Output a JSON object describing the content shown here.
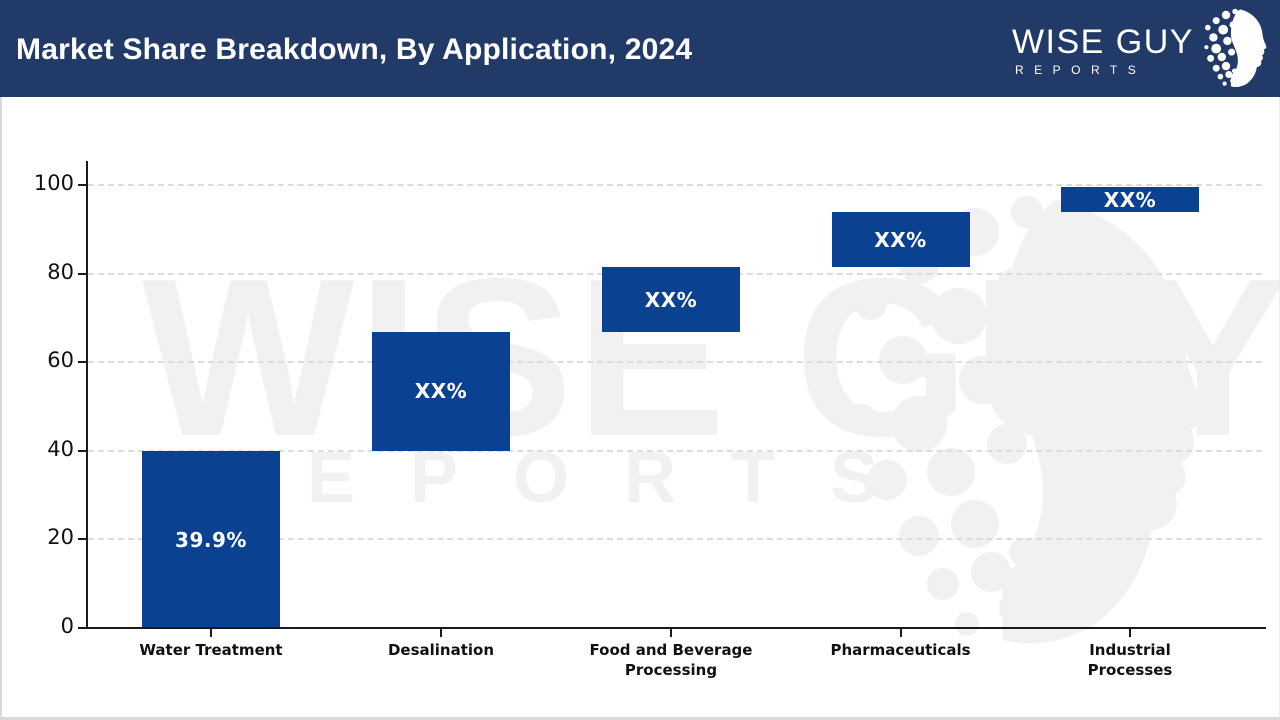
{
  "header": {
    "title": "Market Share Breakdown, By Application, 2024",
    "logo": {
      "line1": "WISE GUY",
      "line2": "REPORTS"
    }
  },
  "watermark": {
    "line1": "WISE GUY",
    "line2": "REPORTS"
  },
  "colors": {
    "header_bg": "#223a67",
    "bar": "#0a4191",
    "axis": "#1a1a1a",
    "grid": "#dcdcdc",
    "watermark": "#f1f1f2",
    "bar_label_text": "#ffffff",
    "tick_text": "#111111"
  },
  "chart_data": {
    "type": "bar",
    "subtype": "waterfall",
    "title": "Market Share Breakdown, By Application, 2024",
    "categories": [
      "Water Treatment",
      "Desalination",
      "Food and Beverage Processing",
      "Pharmaceuticals",
      "Industrial Processes"
    ],
    "category_lines": [
      [
        "Water Treatment"
      ],
      [
        "Desalination"
      ],
      [
        "Food and Beverage",
        "Processing"
      ],
      [
        "Pharmaceuticals"
      ],
      [
        "Industrial",
        "Processes"
      ]
    ],
    "segments": [
      {
        "category": "Water Treatment",
        "start": 0,
        "end": 39.9,
        "label": "39.9%"
      },
      {
        "category": "Desalination",
        "start": 39.9,
        "end": 66.9,
        "label": "XX%"
      },
      {
        "category": "Food and Beverage Processing",
        "start": 66.9,
        "end": 81.4,
        "label": "XX%"
      },
      {
        "category": "Pharmaceuticals",
        "start": 81.4,
        "end": 93.9,
        "label": "XX%"
      },
      {
        "category": "Industrial Processes",
        "start": 93.9,
        "end": 99.5,
        "label": "XX%"
      }
    ],
    "y_ticks": [
      0,
      20,
      40,
      60,
      80,
      100
    ],
    "ylim": [
      0,
      105
    ],
    "xlabel": "",
    "ylabel": "",
    "grid": true,
    "legend": "none",
    "bar_color": "#0a4191"
  }
}
